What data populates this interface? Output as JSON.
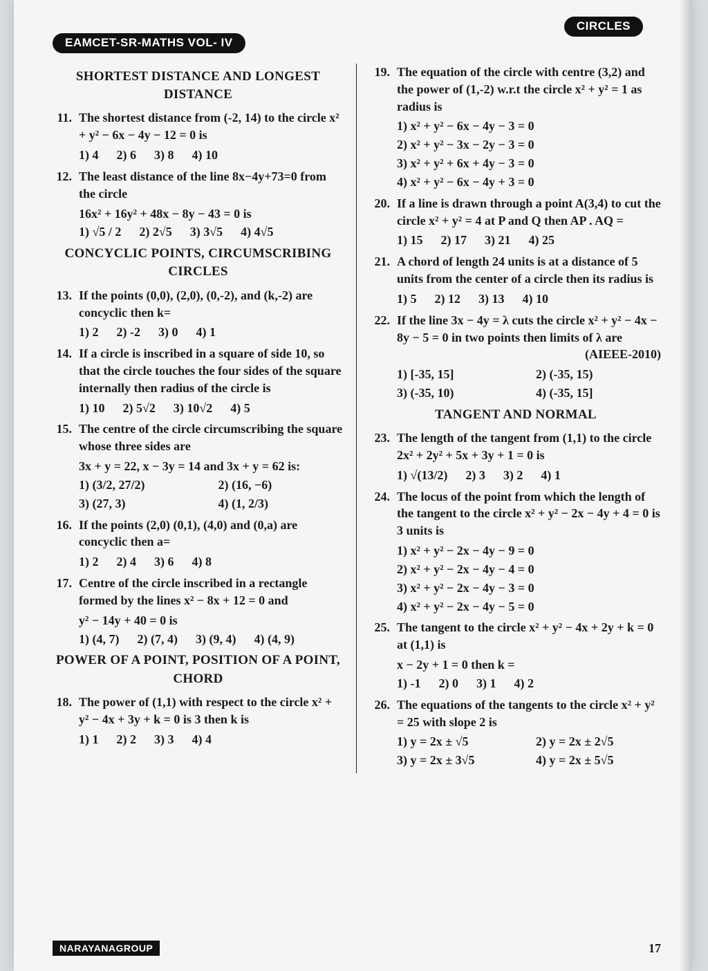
{
  "header": {
    "vol": "EAMCET-SR-MATHS VOL- IV",
    "topic": "CIRCLES",
    "publisher": "NARAYANAGROUP",
    "page_no": "17"
  },
  "sections": {
    "shortest": "SHORTEST DISTANCE AND LONGEST DISTANCE",
    "concyclic": "CONCYCLIC POINTS, CIRCUMSCRIBING CIRCLES",
    "power": "POWER OF A POINT, POSITION OF A POINT, CHORD",
    "tangent": "TANGENT AND NORMAL"
  },
  "q11": {
    "n": "11.",
    "t": "The shortest distance from (-2, 14) to the circle x² + y² − 6x − 4y − 12 = 0 is",
    "o1": "1) 4",
    "o2": "2) 6",
    "o3": "3) 8",
    "o4": "4) 10"
  },
  "q12": {
    "n": "12.",
    "t": "The least distance of the line 8x−4y+73=0 from the circle",
    "t2": "16x² + 16y² + 48x − 8y − 43 = 0 is",
    "o1": "1) √5 / 2",
    "o2": "2) 2√5",
    "o3": "3) 3√5",
    "o4": "4) 4√5"
  },
  "q13": {
    "n": "13.",
    "t": "If the points (0,0), (2,0), (0,-2), and (k,-2) are concyclic then k=",
    "o1": "1) 2",
    "o2": "2) -2",
    "o3": "3) 0",
    "o4": "4) 1"
  },
  "q14": {
    "n": "14.",
    "t": "If a circle is inscribed in a square of side 10, so that the circle touches the four sides of the square internally then radius of the circle is",
    "o1": "1) 10",
    "o2": "2) 5√2",
    "o3": "3) 10√2",
    "o4": "4) 5"
  },
  "q15": {
    "n": "15.",
    "t": "The centre of the circle circumscribing the square whose three sides are",
    "t2": "3x + y = 22, x − 3y = 14 and 3x + y = 62 is:",
    "o1": "1) (3/2, 27/2)",
    "o2": "2) (16, −6)",
    "o3": "3) (27, 3)",
    "o4": "4) (1, 2/3)"
  },
  "q16": {
    "n": "16.",
    "t": "If the points (2,0) (0,1), (4,0) and (0,a) are concyclic then a=",
    "o1": "1) 2",
    "o2": "2) 4",
    "o3": "3) 6",
    "o4": "4) 8"
  },
  "q17": {
    "n": "17.",
    "t": "Centre of the circle inscribed in a rectangle formed by the lines x² − 8x + 12 = 0 and",
    "t2": "y² − 14y + 40 = 0 is",
    "o1": "1) (4, 7)",
    "o2": "2) (7, 4)",
    "o3": "3) (9, 4)",
    "o4": "4) (4, 9)"
  },
  "q18": {
    "n": "18.",
    "t": "The power of (1,1) with respect to the circle x² + y² − 4x + 3y + k = 0 is 3 then k is",
    "o1": "1) 1",
    "o2": "2) 2",
    "o3": "3) 3",
    "o4": "4) 4"
  },
  "q19": {
    "n": "19.",
    "t": "The equation of the circle with centre (3,2) and the power of (1,-2) w.r.t the circle x² + y² = 1 as radius is",
    "o1": "1) x² + y² − 6x − 4y − 3 = 0",
    "o2": "2) x² + y² − 3x − 2y − 3 = 0",
    "o3": "3) x² + y² + 6x + 4y − 3 = 0",
    "o4": "4) x² + y² − 6x − 4y + 3 = 0"
  },
  "q20": {
    "n": "20.",
    "t": "If a line is drawn through a point A(3,4) to cut the circle x² + y² = 4 at P and Q then AP . AQ =",
    "o1": "1) 15",
    "o2": "2) 17",
    "o3": "3) 21",
    "o4": "4) 25"
  },
  "q21": {
    "n": "21.",
    "t": "A chord of length 24 units is at a distance of 5 units from the center of a circle then its radius is",
    "o1": "1) 5",
    "o2": "2) 12",
    "o3": "3) 13",
    "o4": "4) 10"
  },
  "q22": {
    "n": "22.",
    "t": "If the line 3x − 4y = λ cuts the circle x² + y² − 4x − 8y − 5 = 0 in two points then limits of λ are",
    "tag": "(AIEEE-2010)",
    "o1": "1) [-35, 15]",
    "o2": "2) (-35, 15)",
    "o3": "3) (-35, 10)",
    "o4": "4) (-35, 15]"
  },
  "q23": {
    "n": "23.",
    "t": "The length of the tangent from (1,1) to the circle 2x² + 2y² + 5x + 3y + 1 = 0 is",
    "o1": "1) √(13/2)",
    "o2": "2) 3",
    "o3": "3) 2",
    "o4": "4) 1"
  },
  "q24": {
    "n": "24.",
    "t": "The locus of the point from which the length of the tangent to the circle x² + y² − 2x − 4y + 4 = 0 is 3 units is",
    "o1": "1) x² + y² − 2x − 4y − 9 = 0",
    "o2": "2) x² + y² − 2x − 4y − 4 = 0",
    "o3": "3) x² + y² − 2x − 4y − 3 = 0",
    "o4": "4) x² + y² − 2x − 4y − 5 = 0"
  },
  "q25": {
    "n": "25.",
    "t": "The tangent to the circle x² + y² − 4x + 2y + k = 0 at (1,1) is",
    "t2": "x − 2y + 1 = 0 then k =",
    "o1": "1) -1",
    "o2": "2) 0",
    "o3": "3) 1",
    "o4": "4) 2"
  },
  "q26": {
    "n": "26.",
    "t": "The equations of the tangents to the circle x² + y² = 25 with slope 2 is",
    "o1": "1) y = 2x ± √5",
    "o2": "2) y = 2x ± 2√5",
    "o3": "3) y = 2x ± 3√5",
    "o4": "4) y = 2x ± 5√5"
  }
}
